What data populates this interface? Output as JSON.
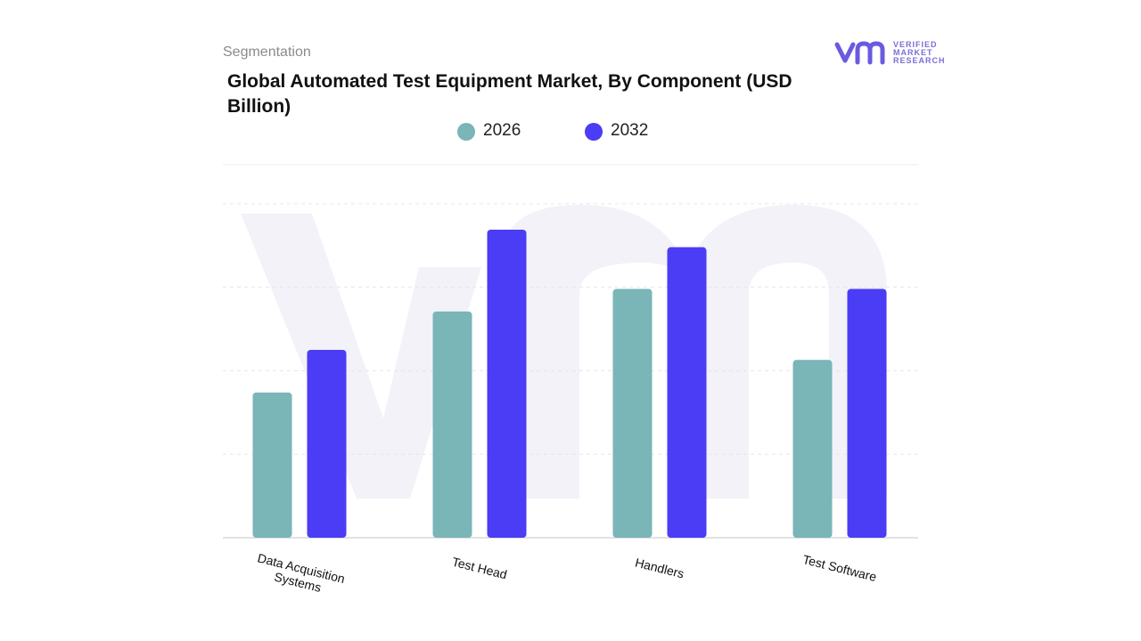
{
  "chart_data": {
    "type": "bar",
    "subtitle": "Segmentation",
    "title": "Global Automated Test Equipment Market, By Component (USD Billion)",
    "logo": {
      "line1": "VERIFIED",
      "line2": "MARKET",
      "line3": "RESEARCH"
    },
    "categories": [
      "Data Acquisition Systems",
      "Test Head",
      "Handlers",
      "Test Software"
    ],
    "series": [
      {
        "name": "2026",
        "color": "#7ab5b8",
        "values": [
          1.74,
          2.71,
          2.98,
          2.13
        ]
      },
      {
        "name": "2032",
        "color": "#4b3cf5",
        "values": [
          2.25,
          3.69,
          3.48,
          2.98
        ]
      }
    ],
    "ylim": [
      0,
      4.5
    ],
    "yticks": [
      0,
      1,
      2,
      3,
      4
    ],
    "grid": true
  }
}
